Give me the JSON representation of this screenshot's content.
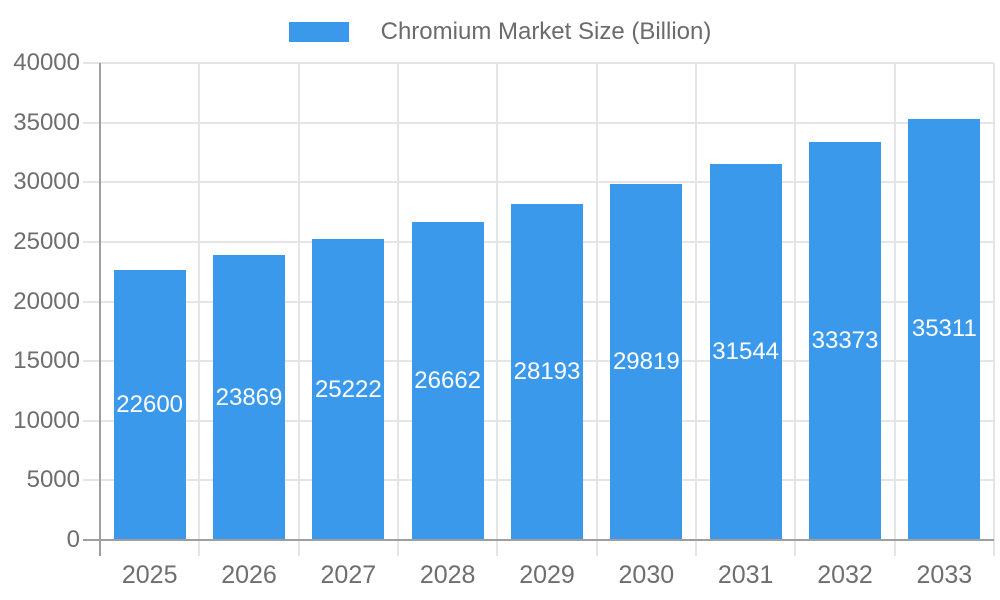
{
  "legend": {
    "label": "Chromium Market Size (Billion)",
    "position": "top"
  },
  "colors": {
    "bar": "#3B99EC",
    "grid": "#E5E5E5",
    "axis": "#9E9E9E",
    "tick_text": "#6E6E6E",
    "legend_text": "#6B6B6B",
    "bar_label_text": "#FFFFFF",
    "background": "#FFFFFF"
  },
  "chart_data": {
    "type": "bar",
    "title": "",
    "legend": [
      "Chromium Market Size (Billion)"
    ],
    "legend_position": "top",
    "categories": [
      "2025",
      "2026",
      "2027",
      "2028",
      "2029",
      "2030",
      "2031",
      "2032",
      "2033"
    ],
    "values": [
      22600,
      23869,
      25222,
      26662,
      28193,
      29819,
      31544,
      33373,
      35311
    ],
    "xlabel": "",
    "ylabel": "",
    "ylim": [
      0,
      40000
    ],
    "yticks": [
      0,
      5000,
      10000,
      15000,
      20000,
      25000,
      30000,
      35000,
      40000
    ],
    "ytick_labels": [
      "0",
      "5000",
      "10000",
      "15000",
      "20000",
      "25000",
      "30000",
      "35000",
      "40000"
    ],
    "grid": true,
    "value_labels": "inside-center",
    "value_label_color": "#FFFFFF"
  }
}
